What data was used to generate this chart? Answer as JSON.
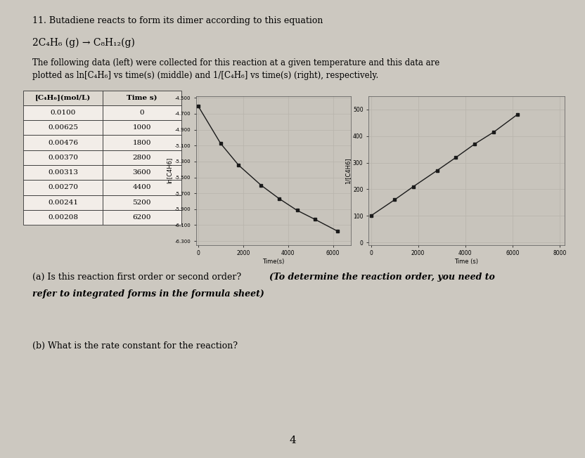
{
  "concentrations": [
    0.01,
    0.00625,
    0.00476,
    0.0037,
    0.00313,
    0.0027,
    0.00241,
    0.00208
  ],
  "times": [
    0,
    1000,
    1800,
    2800,
    3600,
    4400,
    5200,
    6200
  ],
  "title_text": "11. Butadiene reacts to form its dimer according to this equation",
  "equation_text": "2C₄H₆ (g) → C₈H₁₂(g)",
  "body_text_1": "The following data (left) were collected for this reaction at a given temperature and this data are",
  "body_text_2": "plotted as ln[C₄H₆] vs time(s) (middle) and 1/[C₄H₆] vs time(s) (right), respectively.",
  "table_col1_header": "[C₄H₆](mol/L)",
  "table_col2_header": "Time s)",
  "conc_display": [
    "0.0100",
    "0.00625",
    "0.00476",
    "0.00370",
    "0.00313",
    "0.00270",
    "0.00241",
    "0.00208"
  ],
  "time_display": [
    "0",
    "1000",
    "1800",
    "2800",
    "3600",
    "4400",
    "5200",
    "6200"
  ],
  "question_a_normal": "(a) Is this reaction first order or second order? ",
  "question_a_italic": "(To determine the reaction order, you need to",
  "question_a_italic2": "refer to integrated forms in the formula sheet)",
  "question_b": "(b) What is the rate constant for the reaction?",
  "page_number": "4",
  "page_bg": "#ccc8c0",
  "plot_bg": "#c8c4bc",
  "line_color": "#1a1a1a",
  "grid_color": "#b8b4ac",
  "ylabel1": "ln[C4H6]",
  "xlabel1": "Time(s)",
  "ylabel2": "1/[C4H6]",
  "xlabel2": "Time (s)",
  "ln_yticks": [
    -6.3,
    -6.1,
    -5.9,
    -5.7,
    -5.5,
    -5.3,
    -5.1,
    -4.9,
    -4.7,
    -4.5
  ],
  "ln_ytick_labels": [
    "-6.300",
    "-6.100",
    "-5.900",
    "-5.700",
    "-5.500",
    "-5.300",
    "-5.100",
    "-4.900",
    "-4.700",
    "-4.500"
  ],
  "ln_xticks": [
    0,
    2000,
    4000,
    6000
  ],
  "inv_yticks": [
    0,
    100,
    200,
    300,
    400,
    500
  ],
  "inv_xticks": [
    0,
    2000,
    4000,
    6000,
    8000
  ]
}
